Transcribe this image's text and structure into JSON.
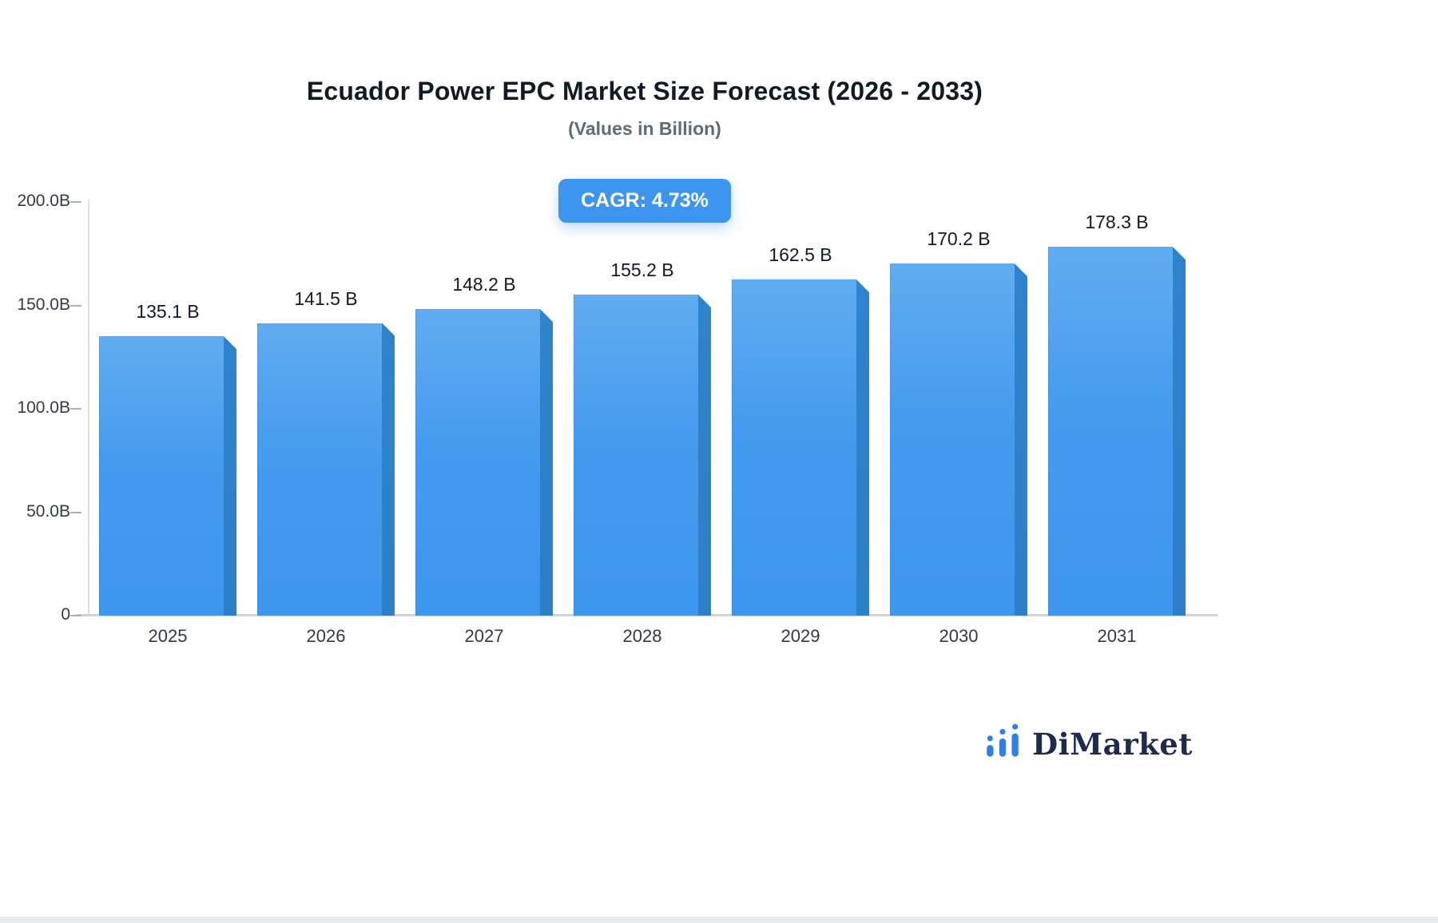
{
  "header": {
    "title": "Ecuador Power EPC Market Size Forecast (2026 - 2033)",
    "subtitle": "(Values in Billion)",
    "badge_label": "CAGR: 4.73%"
  },
  "logo": {
    "text": "DiMarket"
  },
  "chart_data": {
    "type": "bar",
    "title": "Ecuador Power EPC Market Size Forecast (2026 - 2033)",
    "subtitle": "(Values in Billion)",
    "annotation": "CAGR: 4.73%",
    "categories": [
      "2025",
      "2026",
      "2027",
      "2028",
      "2029",
      "2030",
      "2031"
    ],
    "values": [
      135.1,
      141.5,
      148.2,
      155.2,
      162.5,
      170.2,
      178.3
    ],
    "value_labels": [
      "135.1 B",
      "141.5 B",
      "148.2 B",
      "155.2 B",
      "162.5 B",
      "170.2 B",
      "178.3 B"
    ],
    "xlabel": "",
    "ylabel": "",
    "ylim": [
      0,
      200
    ],
    "y_ticks": [
      {
        "label": "200.0B",
        "value": 200
      },
      {
        "label": "150.0B",
        "value": 150
      },
      {
        "label": "100.0B",
        "value": 100
      },
      {
        "label": "50.0B",
        "value": 50
      },
      {
        "label": "0",
        "value": 0
      }
    ],
    "grid": false,
    "legend": "none",
    "colors": {
      "bar_front_top": "#61acf1",
      "bar_front_bottom": "#3e96ed",
      "bar_side": "#2d7fc7",
      "badge_background": "#3d95ee",
      "axis_line": "#cfd4da",
      "label_text": "#111b27"
    }
  }
}
